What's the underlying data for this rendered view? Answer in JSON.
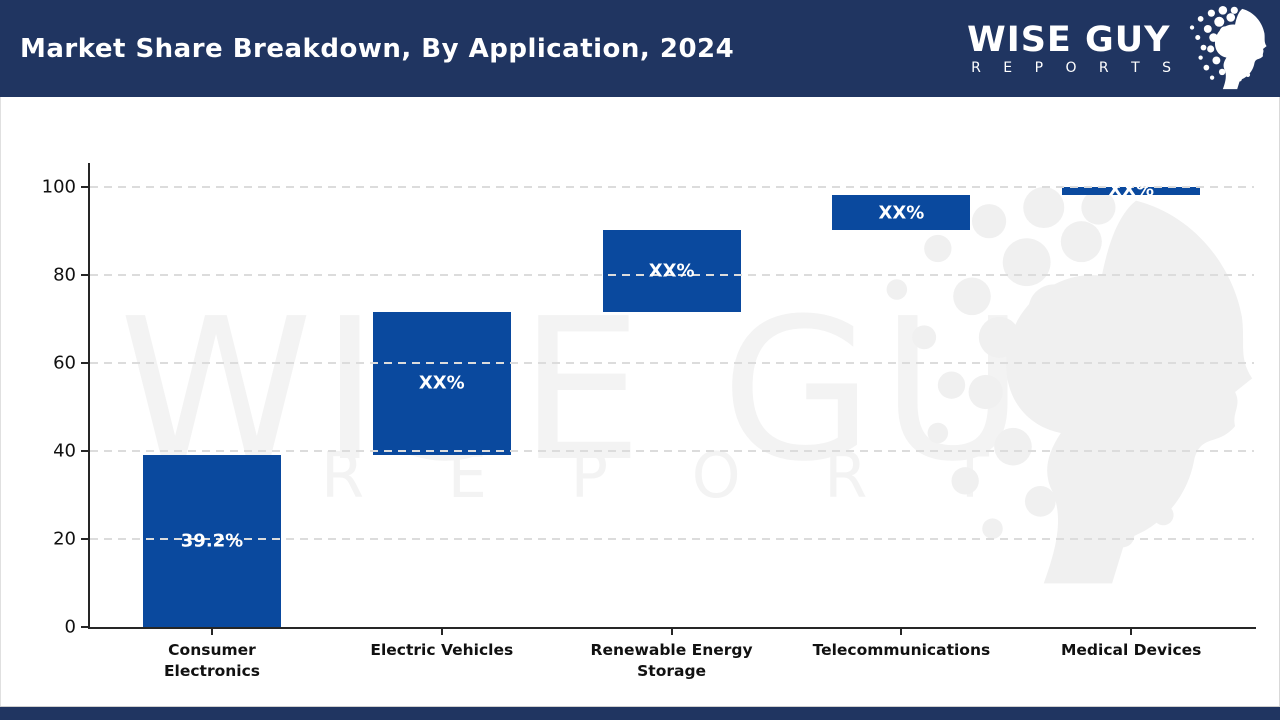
{
  "header": {
    "title": "Market Share Breakdown, By Application, 2024",
    "logo": {
      "primary": "WISE GUY",
      "secondary": "R E P O R T S"
    }
  },
  "watermark": {
    "line1": "WISE GUY",
    "line2": "R E P O R T S"
  },
  "colors": {
    "header_bg": "#203561",
    "footer_bg": "#203561",
    "bar": "#0a499e",
    "bar_label": "#ffffff",
    "grid": "#dcdcdc",
    "axis": "#262626",
    "tick_label": "#111111",
    "watermark": "#f3f3f3"
  },
  "chart_data": {
    "type": "bar",
    "subtype": "waterfall",
    "title": "Market Share Breakdown, By Application, 2024",
    "categories": [
      "Consumer\nElectronics",
      "Electric Vehicles",
      "Renewable Energy\nStorage",
      "Telecommunications",
      "Medical Devices"
    ],
    "segments": [
      {
        "category": "Consumer Electronics",
        "start": 0,
        "end": 39.2,
        "label": "39.2%"
      },
      {
        "category": "Electric Vehicles",
        "start": 39.2,
        "end": 71.7,
        "label": "XX%"
      },
      {
        "category": "Renewable Energy Storage",
        "start": 71.7,
        "end": 90.2,
        "label": "XX%"
      },
      {
        "category": "Telecommunications",
        "start": 90.2,
        "end": 98.2,
        "label": "XX%"
      },
      {
        "category": "Medical Devices",
        "start": 98.2,
        "end": 100,
        "label": "XX%"
      }
    ],
    "values_pct": [
      39.2,
      32.5,
      18.5,
      8.0,
      1.8
    ],
    "xlabel": "",
    "ylabel": "",
    "ylim": [
      0,
      100
    ],
    "yticks": [
      0,
      20,
      40,
      60,
      80,
      100
    ],
    "grid": {
      "axis": "y",
      "style": "dashed",
      "drawn_over_bars": true
    },
    "legend": "none",
    "bar_labels_masked": true
  }
}
